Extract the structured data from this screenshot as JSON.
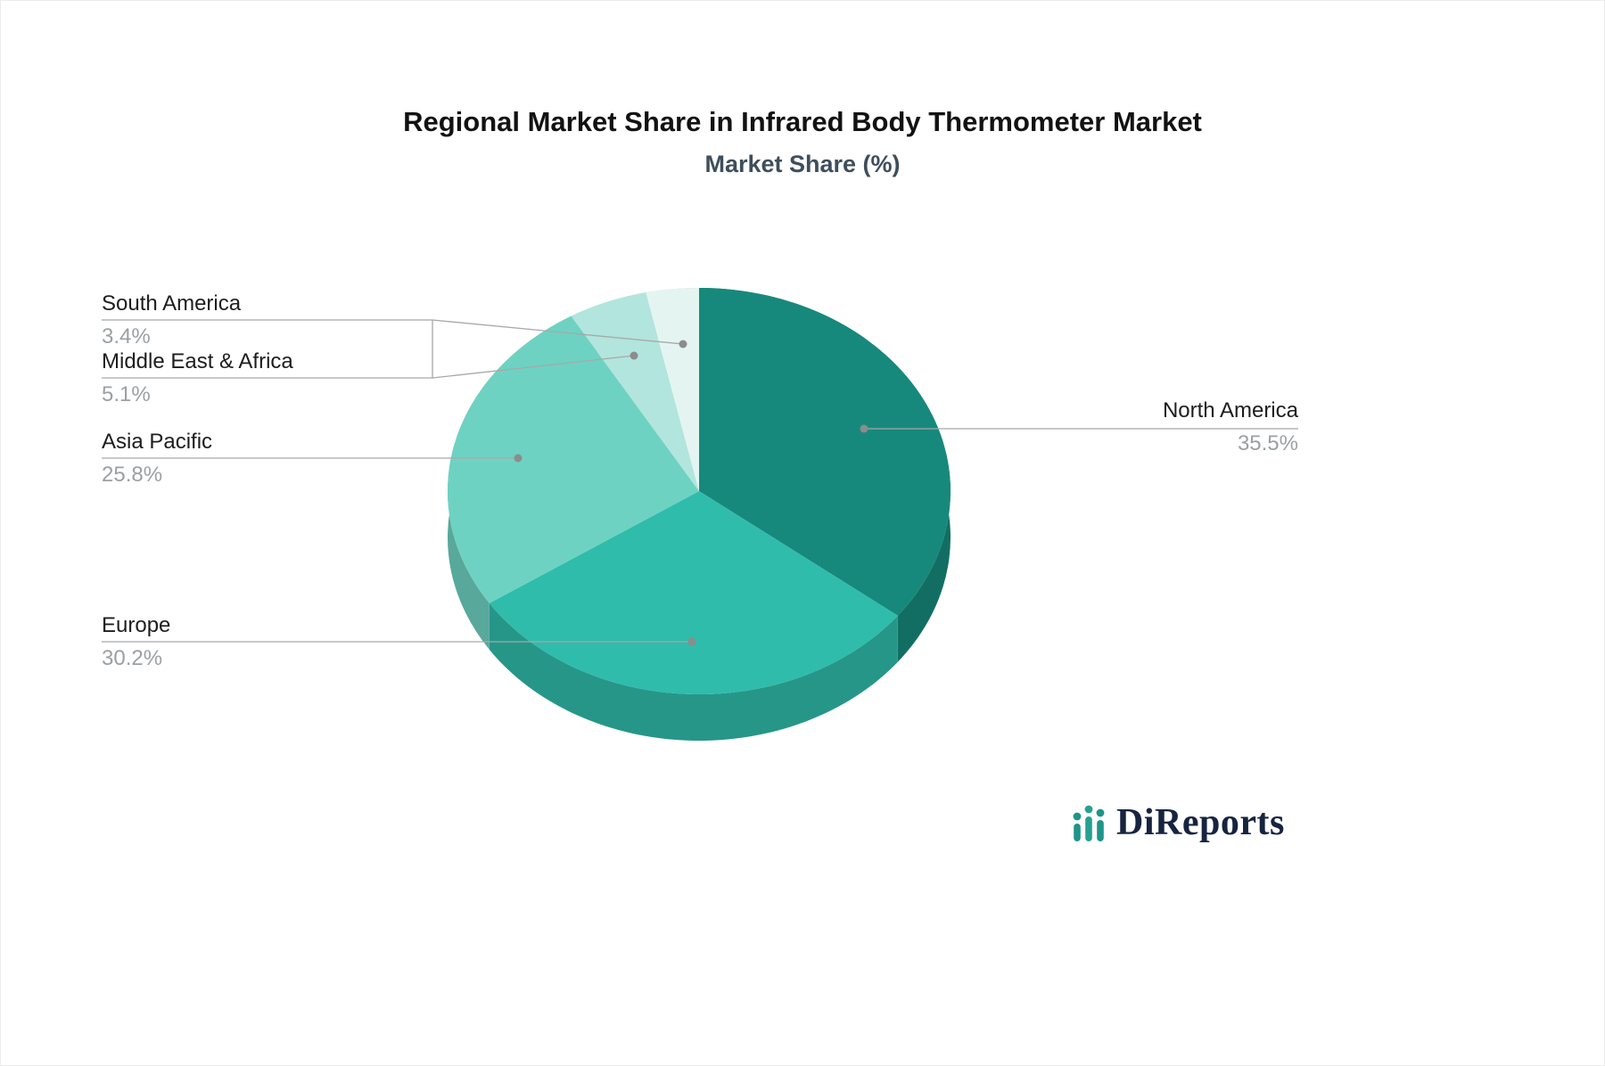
{
  "title": "Regional Market Share in Infrared Body Thermometer Market",
  "subtitle": "Market Share (%)",
  "logo": {
    "text": "DiReports",
    "icon": "bar-chart-dots-icon"
  },
  "chart_data": {
    "type": "pie",
    "title": "Regional Market Share in Infrared Body Thermometer Market",
    "subtitle": "Market Share (%)",
    "unit": "percent",
    "labels": [
      "North America",
      "Europe",
      "Asia Pacific",
      "Middle East & Africa",
      "South America"
    ],
    "values": [
      35.5,
      30.2,
      25.8,
      5.1,
      3.4
    ],
    "display_values": [
      "35.5%",
      "30.2%",
      "25.8%",
      "5.1%",
      "3.4%"
    ],
    "colors": [
      "#17897c",
      "#2fbcab",
      "#6ed2c2",
      "#b2e5dd",
      "#e4f5f1"
    ],
    "start_angle_deg": 0,
    "direction": "clockwise",
    "effect": "3d",
    "legend_position": "none",
    "label_style": "external-leader-lines"
  }
}
